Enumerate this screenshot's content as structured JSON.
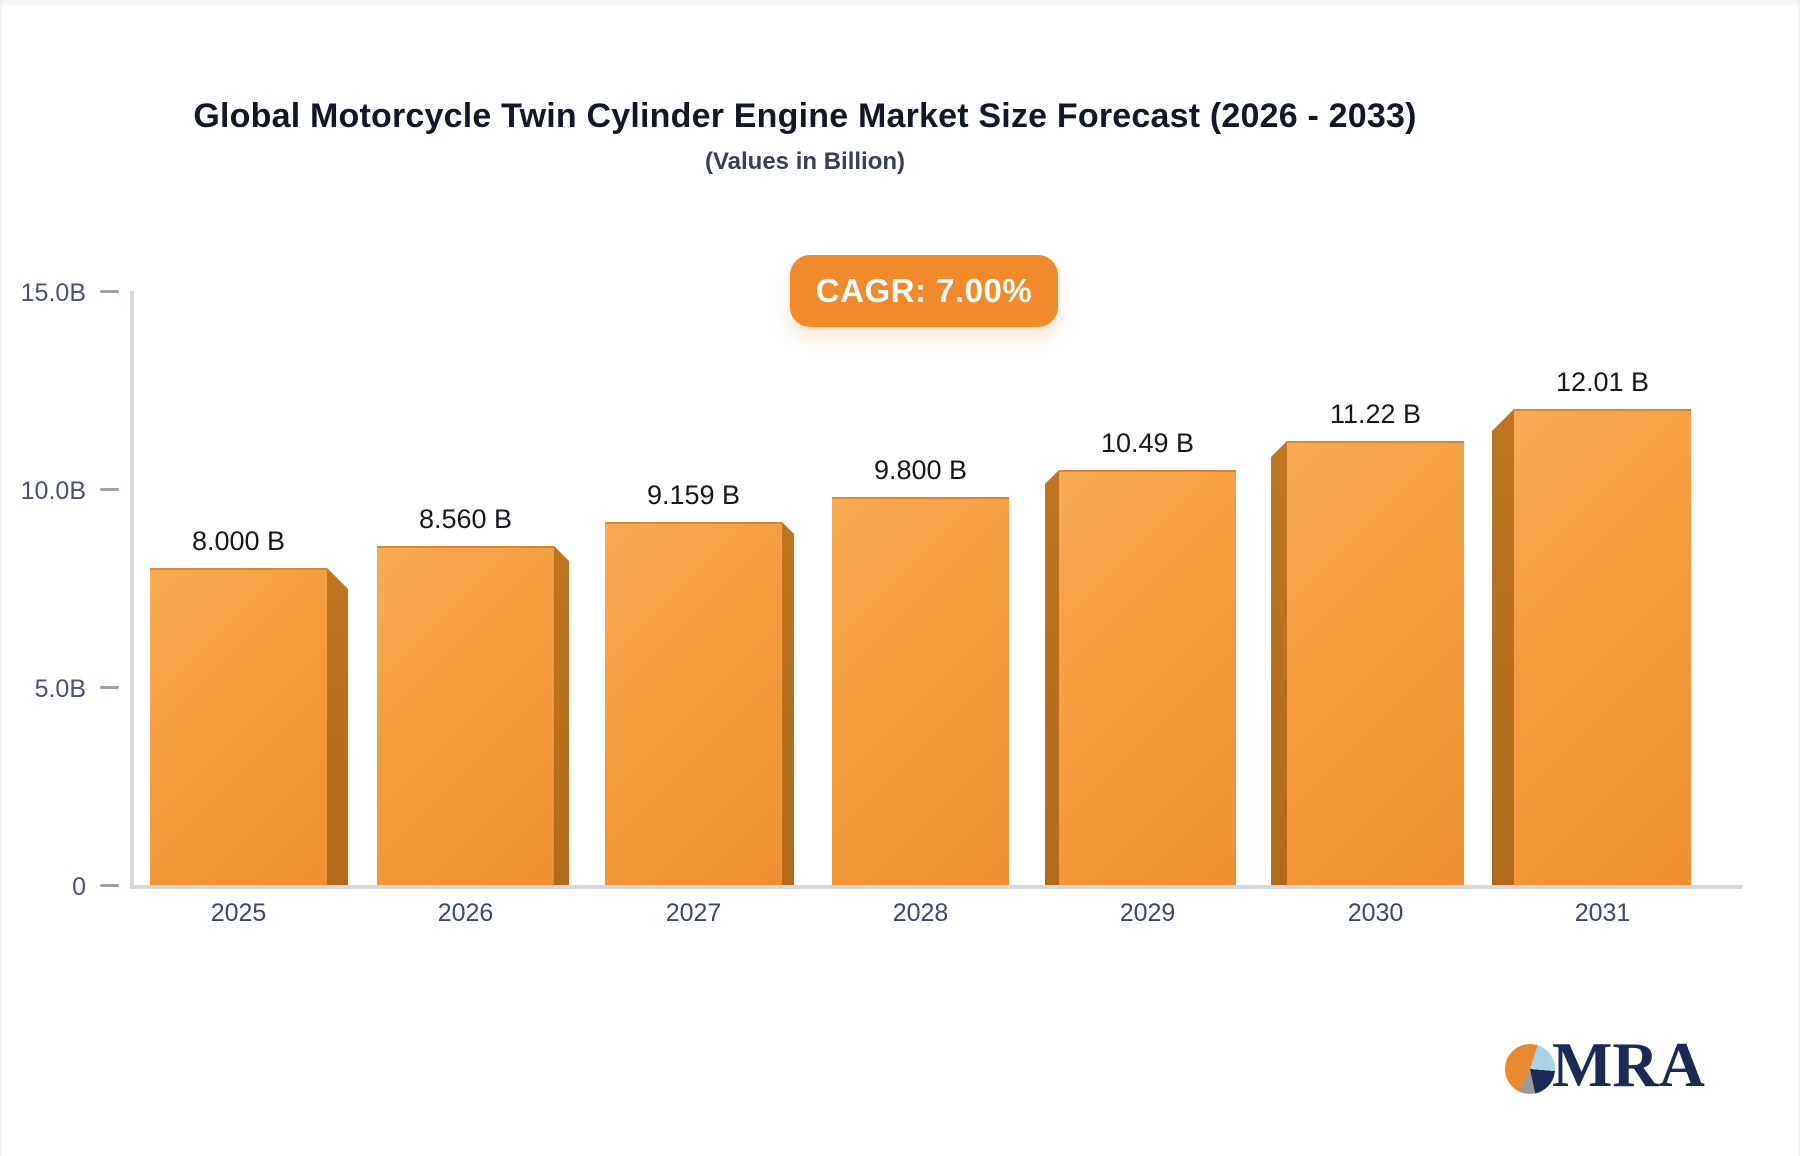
{
  "header": {
    "title": "Global Motorcycle Twin Cylinder Engine Market Size Forecast (2026 - 2033)",
    "subtitle": "(Values in Billion)"
  },
  "badge": {
    "label": "CAGR: 7.00%"
  },
  "chart_data": {
    "type": "bar",
    "title": "Global Motorcycle Twin Cylinder Engine Market Size Forecast (2026 - 2033)",
    "subtitle": "(Values in Billion)",
    "annotation": "CAGR: 7.00%",
    "categories": [
      "2025",
      "2026",
      "2027",
      "2028",
      "2029",
      "2030",
      "2031"
    ],
    "values": [
      8.0,
      8.56,
      9.159,
      9.8,
      10.49,
      11.22,
      12.01
    ],
    "value_labels": [
      "8.000 B",
      "8.560 B",
      "9.159 B",
      "9.800 B",
      "10.49 B",
      "11.22 B",
      "12.01 B"
    ],
    "xlabel": "",
    "ylabel": "",
    "ylim": [
      0,
      15
    ],
    "yticks": [
      {
        "value": 15,
        "label": "15.0B"
      },
      {
        "value": 10,
        "label": "10.0B"
      },
      {
        "value": 5,
        "label": "5.0B"
      },
      {
        "value": 0,
        "label": "0"
      }
    ],
    "grid": false,
    "legend": false,
    "bar_style": "3d-extruded-orange"
  },
  "colors": {
    "title_text": "#111827",
    "subtitle_text": "#374151",
    "badge_bg": "#F18A2B",
    "bar_face": "#F49C3B",
    "bar_side": "#BC711D",
    "axis_line": "#D5D8DD",
    "tick_dash": "#9AA3AD",
    "ytick_text": "#4A5568",
    "xtick_text": "#3C4A63",
    "value_text": "#15181D",
    "logo_navy": "#1B2A55",
    "logo_orange": "#E98A2E",
    "logo_blue": "#A8D4EA",
    "logo_gray": "#9B9B9B"
  },
  "logo": {
    "text": "MRA"
  }
}
